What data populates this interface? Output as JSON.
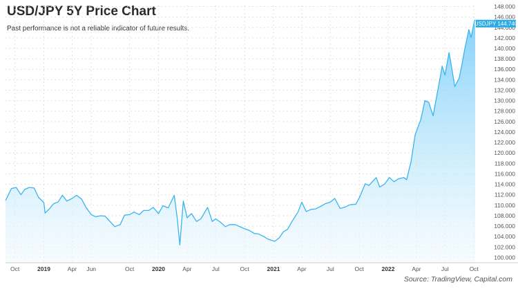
{
  "header": {
    "title": "USD/JPY 5Y Price Chart",
    "subtitle": "Past performance is not a reliable indicator of future results."
  },
  "footer": {
    "source": "Source: TradingView, Capital.com"
  },
  "colors": {
    "line": "#39b4ee",
    "fill_top": "#7fd0f8",
    "fill_bottom": "#f2fafe",
    "price_badge": "#2aaae6",
    "grid": "#d6d6d6"
  },
  "chart_data": {
    "type": "area",
    "title": "USD/JPY 5Y Price Chart",
    "series": [
      {
        "name": "USDJPY",
        "x": [
          "2018-09-01",
          "2018-09-20",
          "2018-10-05",
          "2018-10-20",
          "2018-11-01",
          "2018-11-15",
          "2018-12-01",
          "2018-12-15",
          "2019-01-01",
          "2019-01-05",
          "2019-01-20",
          "2019-02-01",
          "2019-02-15",
          "2019-03-01",
          "2019-03-15",
          "2019-04-01",
          "2019-04-15",
          "2019-05-01",
          "2019-05-15",
          "2019-06-01",
          "2019-06-15",
          "2019-07-01",
          "2019-07-15",
          "2019-08-01",
          "2019-08-15",
          "2019-09-01",
          "2019-09-15",
          "2019-10-01",
          "2019-10-15",
          "2019-11-01",
          "2019-11-15",
          "2019-12-01",
          "2019-12-15",
          "2020-01-01",
          "2020-01-15",
          "2020-02-01",
          "2020-02-20",
          "2020-03-01",
          "2020-03-09",
          "2020-03-20",
          "2020-04-01",
          "2020-04-15",
          "2020-05-01",
          "2020-05-15",
          "2020-06-05",
          "2020-06-20",
          "2020-07-01",
          "2020-07-15",
          "2020-08-01",
          "2020-08-15",
          "2020-09-01",
          "2020-09-20",
          "2020-10-01",
          "2020-10-15",
          "2020-11-01",
          "2020-11-15",
          "2020-12-01",
          "2020-12-15",
          "2021-01-05",
          "2021-01-20",
          "2021-02-01",
          "2021-02-15",
          "2021-03-01",
          "2021-03-20",
          "2021-04-01",
          "2021-04-15",
          "2021-05-01",
          "2021-05-15",
          "2021-06-01",
          "2021-06-15",
          "2021-07-01",
          "2021-07-15",
          "2021-08-01",
          "2021-08-15",
          "2021-09-01",
          "2021-09-20",
          "2021-10-01",
          "2021-10-20",
          "2021-11-01",
          "2021-11-24",
          "2021-12-05",
          "2021-12-20",
          "2022-01-05",
          "2022-01-20",
          "2022-02-01",
          "2022-02-20",
          "2022-03-01",
          "2022-03-15",
          "2022-03-28",
          "2022-04-15",
          "2022-04-28",
          "2022-05-10",
          "2022-05-24",
          "2022-06-05",
          "2022-06-15",
          "2022-06-22",
          "2022-07-01",
          "2022-07-14",
          "2022-07-22",
          "2022-08-01",
          "2022-08-15",
          "2022-08-25",
          "2022-09-01",
          "2022-09-15",
          "2022-09-22",
          "2022-10-01",
          "2022-10-05"
        ],
        "values": [
          110.9,
          113.2,
          113.4,
          112.0,
          113.0,
          113.4,
          113.3,
          111.5,
          110.5,
          108.5,
          109.4,
          110.3,
          110.6,
          111.9,
          110.8,
          111.3,
          111.9,
          111.2,
          109.6,
          108.2,
          107.8,
          108.0,
          107.9,
          106.8,
          105.9,
          106.3,
          108.1,
          108.2,
          108.7,
          108.2,
          109.0,
          109.0,
          109.6,
          108.4,
          109.9,
          109.5,
          111.9,
          107.3,
          102.4,
          110.8,
          107.6,
          108.4,
          106.9,
          107.4,
          109.6,
          106.9,
          107.4,
          106.8,
          105.9,
          106.3,
          106.3,
          105.8,
          105.5,
          105.2,
          104.6,
          104.5,
          104.0,
          103.5,
          103.1,
          103.8,
          104.9,
          105.4,
          106.9,
          108.7,
          110.6,
          108.8,
          109.2,
          109.3,
          109.8,
          110.3,
          110.6,
          111.3,
          109.4,
          109.6,
          110.1,
          110.2,
          111.4,
          114.1,
          113.8,
          115.3,
          113.5,
          114.0,
          115.3,
          114.5,
          115.0,
          115.3,
          114.9,
          118.4,
          123.5,
          126.4,
          130.0,
          129.7,
          127.1,
          131.0,
          134.3,
          136.6,
          134.9,
          139.2,
          136.4,
          132.7,
          134.3,
          137.3,
          139.6,
          143.6,
          142.1,
          144.8,
          145.5
        ]
      }
    ],
    "current_label": "USDJPY 144.740",
    "ylim": [
      99,
      148.2
    ],
    "y_ticks": [
      "148.000",
      "146.000",
      "144.000",
      "142.000",
      "140.000",
      "138.000",
      "136.000",
      "134.000",
      "132.000",
      "130.000",
      "128.000",
      "126.000",
      "124.000",
      "122.000",
      "120.000",
      "118.000",
      "116.000",
      "114.000",
      "112.000",
      "110.000",
      "108.000",
      "106.000",
      "104.000",
      "102.000",
      "100.000"
    ],
    "x_ticks": [
      {
        "label": "Oct",
        "date": "2018-10-01",
        "bold": false
      },
      {
        "label": "2019",
        "date": "2019-01-01",
        "bold": true
      },
      {
        "label": "Apr",
        "date": "2019-04-01",
        "bold": false
      },
      {
        "label": "Jun",
        "date": "2019-06-01",
        "bold": false
      },
      {
        "label": "Oct",
        "date": "2019-10-01",
        "bold": false
      },
      {
        "label": "2020",
        "date": "2020-01-01",
        "bold": true
      },
      {
        "label": "Apr",
        "date": "2020-04-01",
        "bold": false
      },
      {
        "label": "Jul",
        "date": "2020-07-01",
        "bold": false
      },
      {
        "label": "Oct",
        "date": "2020-10-01",
        "bold": false
      },
      {
        "label": "2021",
        "date": "2021-01-01",
        "bold": true
      },
      {
        "label": "Apr",
        "date": "2021-04-01",
        "bold": false
      },
      {
        "label": "Jul",
        "date": "2021-07-01",
        "bold": false
      },
      {
        "label": "Oct",
        "date": "2021-10-01",
        "bold": false
      },
      {
        "label": "2022",
        "date": "2022-01-01",
        "bold": true
      },
      {
        "label": "Apr",
        "date": "2022-04-01",
        "bold": false
      },
      {
        "label": "Jul",
        "date": "2022-07-01",
        "bold": false
      },
      {
        "label": "Oct",
        "date": "2022-10-01",
        "bold": false
      }
    ],
    "xlim": [
      "2018-09-01",
      "2022-10-05"
    ],
    "grid": "dotted",
    "legend": "none"
  }
}
